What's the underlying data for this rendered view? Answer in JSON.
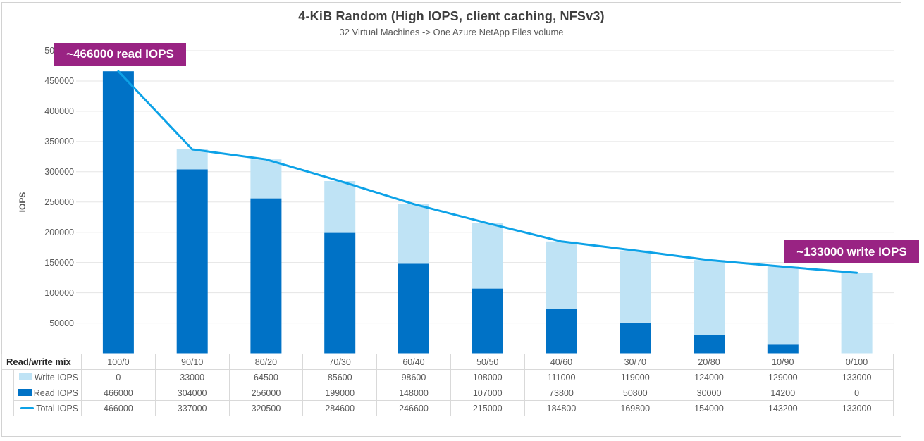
{
  "chart_data": {
    "type": "bar",
    "variant": "stacked-column-with-line-overlay",
    "title": "4-KiB Random (High IOPS, client caching, NFSv3)",
    "subtitle": "32 Virtual Machines -> One Azure NetApp Files volume",
    "ylabel": "IOPS",
    "x_header": "Read/write mix",
    "categories": [
      "100/0",
      "90/10",
      "80/20",
      "70/30",
      "60/40",
      "50/50",
      "40/60",
      "30/70",
      "20/80",
      "10/90",
      "0/100"
    ],
    "series": [
      {
        "name": "Write IOPS",
        "kind": "bar",
        "stack_order": 2,
        "color": "#bfe3f5",
        "values": [
          0,
          33000,
          64500,
          85600,
          98600,
          108000,
          111000,
          119000,
          124000,
          129000,
          133000
        ]
      },
      {
        "name": "Read IOPS",
        "kind": "bar",
        "stack_order": 1,
        "color": "#0072c6",
        "values": [
          466000,
          304000,
          256000,
          199000,
          148000,
          107000,
          73800,
          50800,
          30000,
          14200,
          0
        ]
      },
      {
        "name": "Total IOPS",
        "kind": "line",
        "color": "#0da2e7",
        "values": [
          466000,
          337000,
          320500,
          284600,
          246600,
          215000,
          184800,
          169800,
          154000,
          143200,
          133000
        ]
      }
    ],
    "ylim": [
      0,
      500000
    ],
    "yticks": [
      50000,
      100000,
      150000,
      200000,
      250000,
      300000,
      350000,
      400000,
      450000,
      500000
    ],
    "grid": true,
    "legend_position": "data-table-left-column",
    "annotations": [
      {
        "text": "~466000 read IOPS",
        "anchor": "top-left"
      },
      {
        "text": "~133000 write IOPS",
        "anchor": "middle-right"
      }
    ],
    "colors": {
      "annotation_bg": "#992383",
      "annotation_text": "#ffffff",
      "gridline": "#e5e5e5",
      "axis_text": "#595959",
      "title_text": "#3f3f3f",
      "table_border": "#d9d9d9"
    }
  }
}
